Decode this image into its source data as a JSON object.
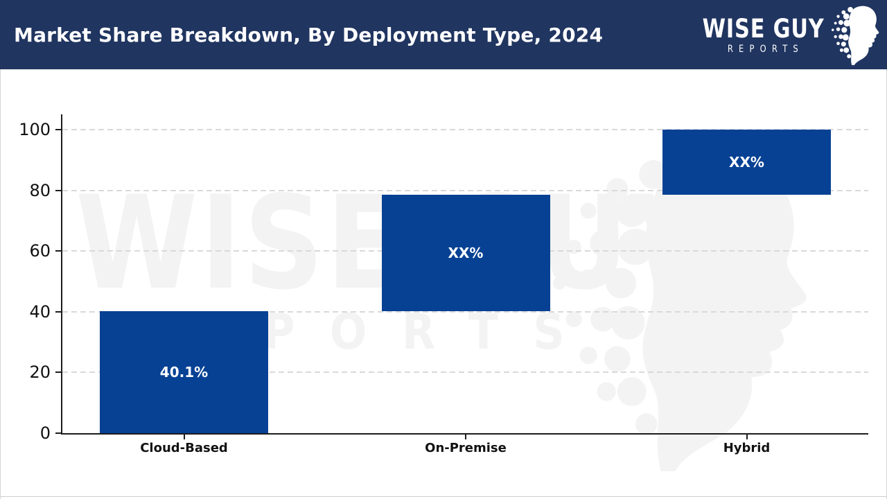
{
  "header": {
    "title": "Market Share Breakdown, By Deployment Type, 2024",
    "logo": {
      "line1": "WISE GUY",
      "line2": "REPORTS"
    }
  },
  "watermark": {
    "line1": "WISE GUY",
    "line2": "REPORTS"
  },
  "chart_data": {
    "type": "bar",
    "subtype": "waterfall-stacked-to-100",
    "title": "Market Share Breakdown, By Deployment Type, 2024",
    "categories": [
      "Cloud-Based",
      "On-Premise",
      "Hybrid"
    ],
    "segments": [
      {
        "category": "Cloud-Based",
        "start": 0,
        "end": 40.1,
        "label": "40.1%"
      },
      {
        "category": "On-Premise",
        "start": 40.1,
        "end": 78.5,
        "label": "XX%"
      },
      {
        "category": "Hybrid",
        "start": 78.5,
        "end": 100,
        "label": "XX%"
      }
    ],
    "xlabel": "",
    "ylabel": "",
    "ylim": [
      0,
      100
    ],
    "yticks": [
      0,
      20,
      40,
      60,
      80,
      100
    ],
    "grid": "dashed-horizontal",
    "legend": "none",
    "bar_color": "#064194",
    "bar_label_color": "#ffffff",
    "header_color": "#203560"
  }
}
